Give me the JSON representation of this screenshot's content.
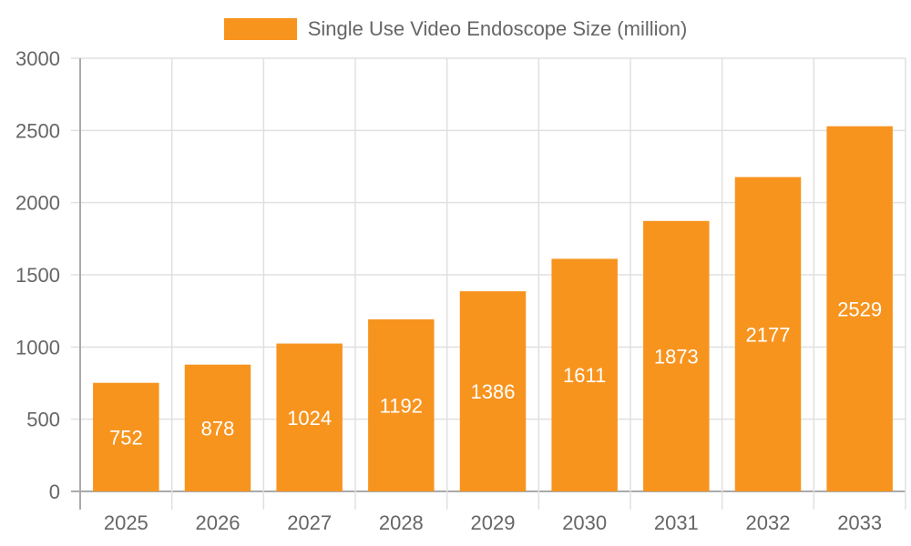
{
  "legend": {
    "label": "Single Use Video Endoscope Size (million)",
    "color": "#f7941e"
  },
  "chart_data": {
    "type": "bar",
    "title": "",
    "xlabel": "",
    "ylabel": "",
    "categories": [
      "2025",
      "2026",
      "2027",
      "2028",
      "2029",
      "2030",
      "2031",
      "2032",
      "2033"
    ],
    "series": [
      {
        "name": "Single Use Video Endoscope Size (million)",
        "values": [
          752,
          878,
          1024,
          1192,
          1386,
          1611,
          1873,
          2177,
          2529
        ],
        "color": "#f7941e"
      }
    ],
    "ylim": [
      0,
      3000
    ],
    "yticks": [
      0,
      500,
      1000,
      1500,
      2000,
      2500,
      3000
    ],
    "grid": true,
    "legend_position": "top",
    "data_labels": true
  }
}
